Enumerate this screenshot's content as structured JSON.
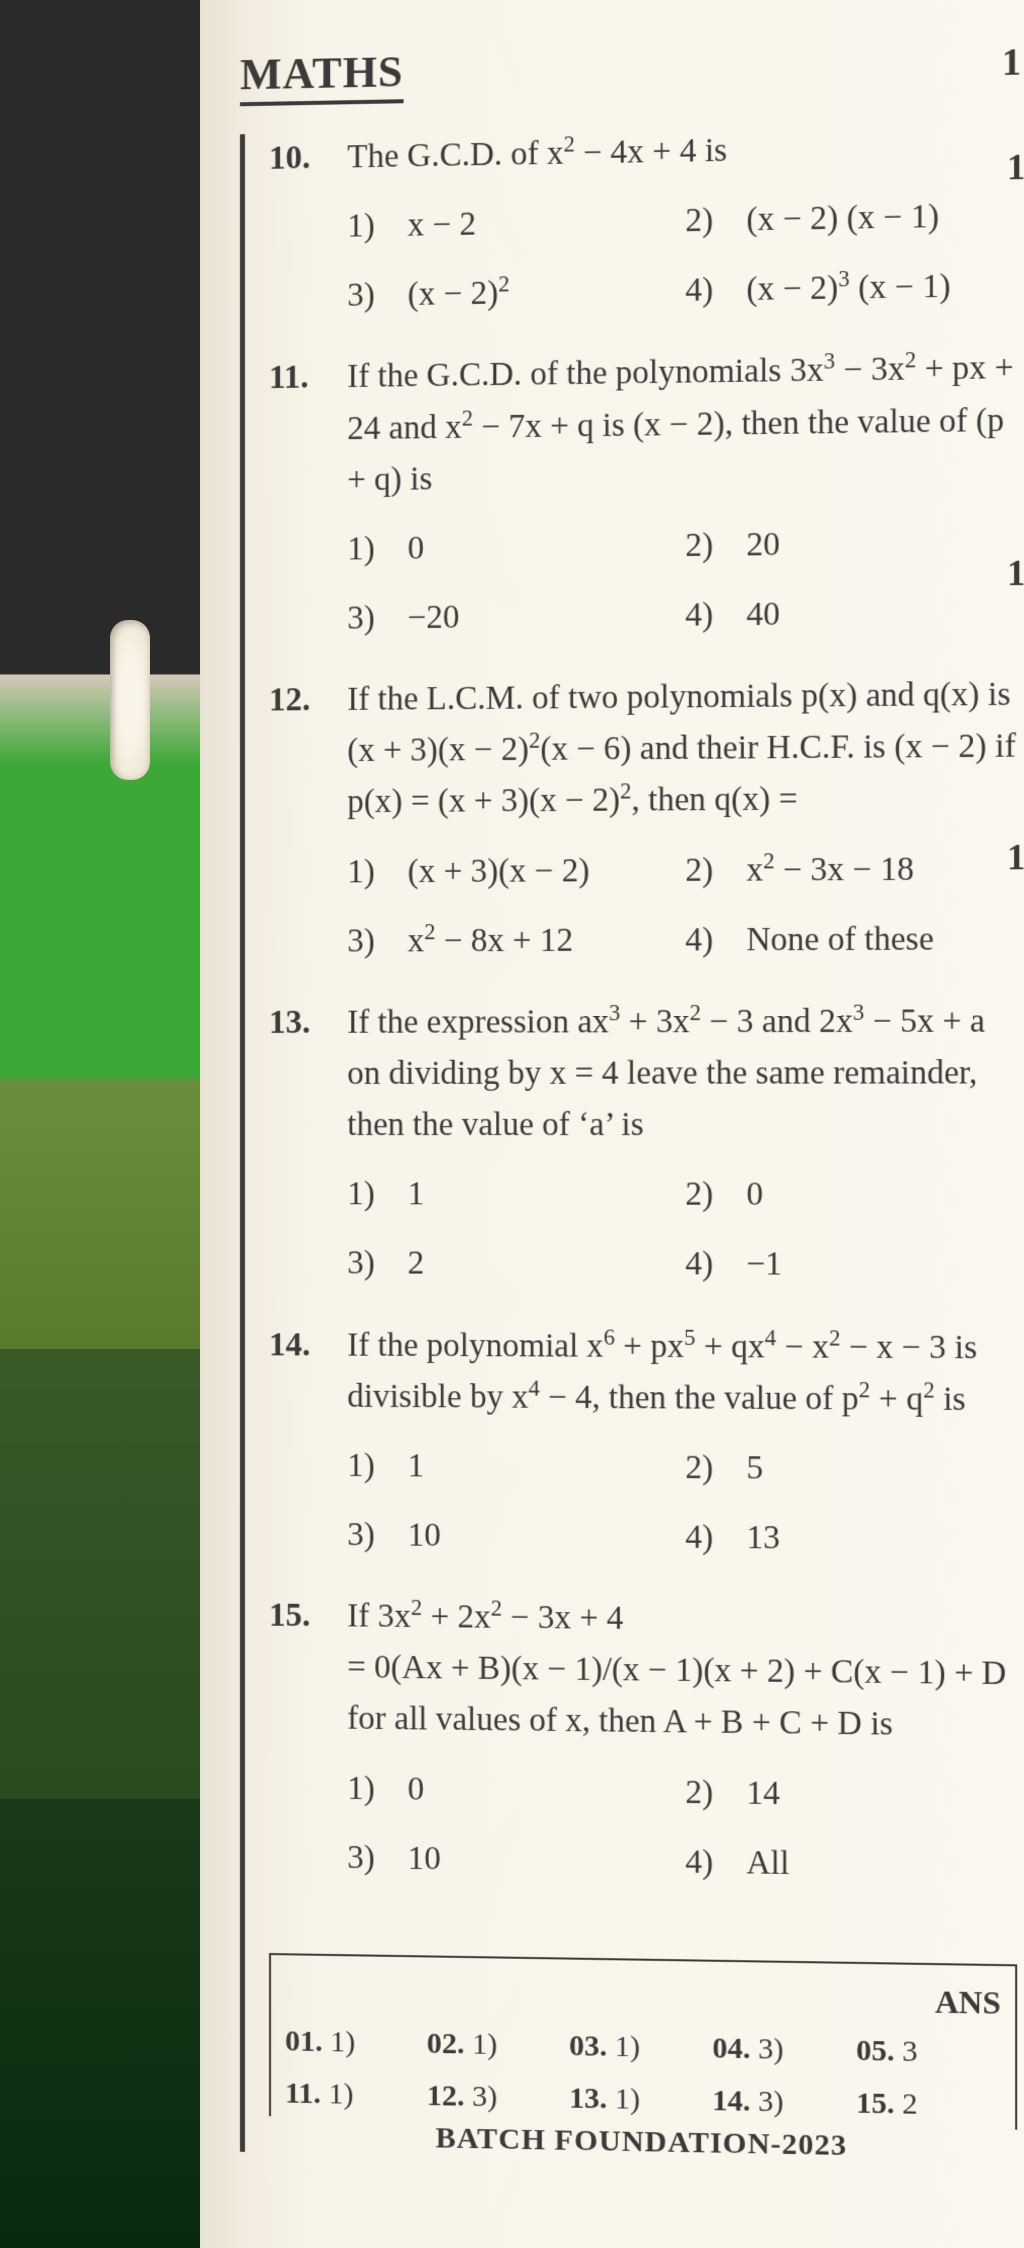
{
  "header": {
    "subject": "MATHS",
    "top_right": "1"
  },
  "side_numbers": [
    "1",
    "1",
    "1"
  ],
  "questions": [
    {
      "num": "10.",
      "stem": "The G.C.D. of  x<sup>2</sup> − 4x + 4  is",
      "options": [
        {
          "n": "1)",
          "t": "x − 2"
        },
        {
          "n": "2)",
          "t": "(x − 2) (x − 1)"
        },
        {
          "n": "3)",
          "t": "(x − 2)<sup>2</sup>"
        },
        {
          "n": "4)",
          "t": "(x − 2)<sup>3</sup> (x − 1)"
        }
      ]
    },
    {
      "num": "11.",
      "stem": "If the G.C.D. of the polynomials 3x<sup>3</sup> − 3x<sup>2</sup> + px + 24 and  x<sup>2</sup> − 7x + q  is (x − 2), then the value of (p + q) is",
      "options": [
        {
          "n": "1)",
          "t": "0"
        },
        {
          "n": "2)",
          "t": "20"
        },
        {
          "n": "3)",
          "t": "−20"
        },
        {
          "n": "4)",
          "t": "40"
        }
      ]
    },
    {
      "num": "12.",
      "stem": "If the L.C.M. of two polynomials p(x) and q(x) is (x + 3)(x − 2)<sup>2</sup>(x − 6) and their H.C.F. is (x − 2) if p(x) = (x + 3)(x − 2)<sup>2</sup>,  then q(x) =",
      "options": [
        {
          "n": "1)",
          "t": "(x + 3)(x − 2)"
        },
        {
          "n": "2)",
          "t": "x<sup>2</sup> − 3x − 18"
        },
        {
          "n": "3)",
          "t": "x<sup>2</sup> − 8x + 12"
        },
        {
          "n": "4)",
          "t": "None of these"
        }
      ]
    },
    {
      "num": "13.",
      "stem": "If the expression ax<sup>3</sup> + 3x<sup>2</sup> − 3 and 2x<sup>3</sup> − 5x + a on dividing by x = 4 leave the same remainder, then the value of ‘a’ is",
      "options": [
        {
          "n": "1)",
          "t": "1"
        },
        {
          "n": "2)",
          "t": "0"
        },
        {
          "n": "3)",
          "t": "2"
        },
        {
          "n": "4)",
          "t": "−1"
        }
      ]
    },
    {
      "num": "14.",
      "stem": "If the polynomial x<sup>6</sup> + px<sup>5</sup> + qx<sup>4</sup> − x<sup>2</sup> − x − 3 is divisible by x<sup>4</sup> − 4, then the value of p<sup>2</sup> + q<sup>2</sup> is",
      "options": [
        {
          "n": "1)",
          "t": "1"
        },
        {
          "n": "2)",
          "t": "5"
        },
        {
          "n": "3)",
          "t": "10"
        },
        {
          "n": "4)",
          "t": "13"
        }
      ]
    },
    {
      "num": "15.",
      "stem": "If 3x<sup>2</sup> + 2x<sup>2</sup> − 3x + 4<br>= 0(Ax + B)(x − 1)/(x − 1)(x + 2) + C(x − 1) + D<br>for all values of x, then A + B + C + D is",
      "options": [
        {
          "n": "1)",
          "t": "0"
        },
        {
          "n": "2)",
          "t": "14"
        },
        {
          "n": "3)",
          "t": "10"
        },
        {
          "n": "4)",
          "t": "All"
        }
      ]
    }
  ],
  "answers": {
    "heading": "ANS",
    "cells": [
      {
        "q": "01.",
        "a": "1)"
      },
      {
        "q": "02.",
        "a": "1)"
      },
      {
        "q": "03.",
        "a": "1)"
      },
      {
        "q": "04.",
        "a": "3)"
      },
      {
        "q": "05.",
        "a": "3"
      },
      {
        "q": "11.",
        "a": "1)"
      },
      {
        "q": "12.",
        "a": "3)"
      },
      {
        "q": "13.",
        "a": "1)"
      },
      {
        "q": "14.",
        "a": "3)"
      },
      {
        "q": "15.",
        "a": "2"
      }
    ]
  },
  "footer": "BATCH FOUNDATION-2023"
}
